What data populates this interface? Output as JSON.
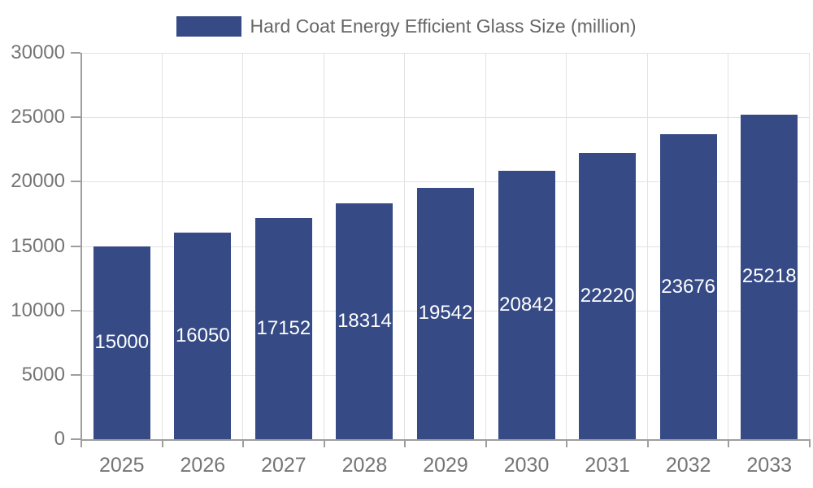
{
  "chart_data": {
    "type": "bar",
    "title": "",
    "series_name": "Hard Coat Energy Efficient Glass Size (million)",
    "categories": [
      "2025",
      "2026",
      "2027",
      "2028",
      "2029",
      "2030",
      "2031",
      "2032",
      "2033"
    ],
    "values": [
      15000,
      16050,
      17152,
      18314,
      19542,
      20842,
      22220,
      23676,
      25218
    ],
    "xlabel": "",
    "ylabel": "",
    "ylim": [
      0,
      30000
    ],
    "yticks": [
      0,
      5000,
      10000,
      15000,
      20000,
      25000,
      30000
    ],
    "grid": true,
    "legend_position": "top",
    "value_label_position": "inside-center"
  },
  "style": {
    "bar_color": "#364a85",
    "bar_label_color": "#ffffff",
    "axis_text_color": "#757575",
    "legend_text_color": "#666666",
    "grid_color": "#e2e2e2",
    "axis_line_color": "#9e9e9e",
    "background_color": "#ffffff"
  }
}
